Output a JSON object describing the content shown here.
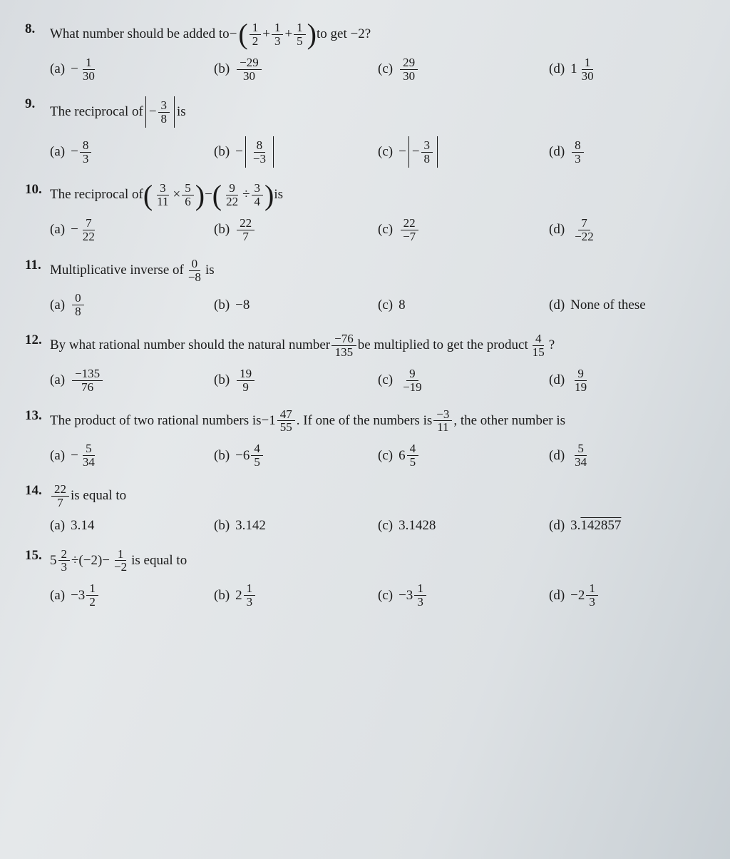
{
  "q8": {
    "num": "8.",
    "text_before": "What number should be added to ",
    "expr_neg": "−",
    "f1n": "1",
    "f1d": "2",
    "f2n": "1",
    "f2d": "3",
    "f3n": "1",
    "f3d": "5",
    "text_after": " to get −2?",
    "a_label": "(a)",
    "a_neg": "−",
    "a_n": "1",
    "a_d": "30",
    "b_label": "(b)",
    "b_n": "−29",
    "b_d": "30",
    "c_label": "(c)",
    "c_n": "29",
    "c_d": "30",
    "d_label": "(d)",
    "d_whole": "1",
    "d_n": "1",
    "d_d": "30"
  },
  "q9": {
    "num": "9.",
    "text_before": "The reciprocal of ",
    "abs_neg": "−",
    "abs_n": "3",
    "abs_d": "8",
    "text_after": " is",
    "a_label": "(a)",
    "a_neg": "−",
    "a_n": "8",
    "a_d": "3",
    "b_label": "(b)",
    "b_neg": "−",
    "b_n": "8",
    "b_d": "−3",
    "c_label": "(c)",
    "c_neg": "−",
    "c_inner_neg": "−",
    "c_n": "3",
    "c_d": "8",
    "d_label": "(d)",
    "d_n": "8",
    "d_d": "3"
  },
  "q10": {
    "num": "10.",
    "text_before": "The reciprocal of ",
    "p1_f1n": "3",
    "p1_f1d": "11",
    "p1_op": "×",
    "p1_f2n": "5",
    "p1_f2d": "6",
    "minus": "−",
    "p2_f1n": "9",
    "p2_f1d": "22",
    "p2_op": "÷",
    "p2_f2n": "3",
    "p2_f2d": "4",
    "text_after": " is",
    "a_label": "(a)",
    "a_neg": "−",
    "a_n": "7",
    "a_d": "22",
    "b_label": "(b)",
    "b_n": "22",
    "b_d": "7",
    "c_label": "(c)",
    "c_n": "22",
    "c_d": "−7",
    "d_label": "(d)",
    "d_n": "7",
    "d_d": "−22"
  },
  "q11": {
    "num": "11.",
    "text_before": "Multiplicative inverse of ",
    "f_n": "0",
    "f_d": "−8",
    "text_after": " is",
    "a_label": "(a)",
    "a_n": "0",
    "a_d": "8",
    "b_label": "(b)",
    "b_val": "−8",
    "c_label": "(c)",
    "c_val": "8",
    "d_label": "(d)",
    "d_val": "None of these"
  },
  "q12": {
    "num": "12.",
    "text_before": "By what rational number should the natural number ",
    "f1_n": "−76",
    "f1_d": "135",
    "text_mid": " be multiplied to get the product ",
    "f2_n": "4",
    "f2_d": "15",
    "text_after": "?",
    "a_label": "(a)",
    "a_n": "−135",
    "a_d": "76",
    "b_label": "(b)",
    "b_n": "19",
    "b_d": "9",
    "c_label": "(c)",
    "c_n": "9",
    "c_d": "−19",
    "d_label": "(d)",
    "d_n": "9",
    "d_d": "19"
  },
  "q13": {
    "num": "13.",
    "text_before": "The product of two rational numbers is ",
    "whole1": "−1",
    "f1_n": "47",
    "f1_d": "55",
    "text_mid": ". If one of the numbers is ",
    "f2_n": "−3",
    "f2_d": "11",
    "text_after": ", the other number is",
    "a_label": "(a)",
    "a_neg": "−",
    "a_n": "5",
    "a_d": "34",
    "b_label": "(b)",
    "b_neg": "−6",
    "b_n": "4",
    "b_d": "5",
    "c_label": "(c)",
    "c_whole": "6",
    "c_n": "4",
    "c_d": "5",
    "d_label": "(d)",
    "d_n": "5",
    "d_d": "34"
  },
  "q14": {
    "num": "14.",
    "f_n": "22",
    "f_d": "7",
    "text_after": " is equal to",
    "a_label": "(a)",
    "a_val": "3.14",
    "b_label": "(b)",
    "b_val": "3.142",
    "c_label": "(c)",
    "c_val": "3.1428",
    "d_label": "(d)",
    "d_pre": "3.",
    "d_over": "142857"
  },
  "q15": {
    "num": "15.",
    "whole": "5",
    "f1_n": "2",
    "f1_d": "3",
    "op1": "÷(−2)−",
    "f2_n": "1",
    "f2_d": "−2",
    "text_after": " is equal to",
    "a_label": "(a)",
    "a_whole": "−3",
    "a_n": "1",
    "a_d": "2",
    "b_label": "(b)",
    "b_whole": "2",
    "b_n": "1",
    "b_d": "3",
    "c_label": "(c)",
    "c_whole": "−3",
    "c_n": "1",
    "c_d": "3",
    "d_label": "(d)",
    "d_whole": "−2",
    "d_n": "1",
    "d_d": "3"
  }
}
